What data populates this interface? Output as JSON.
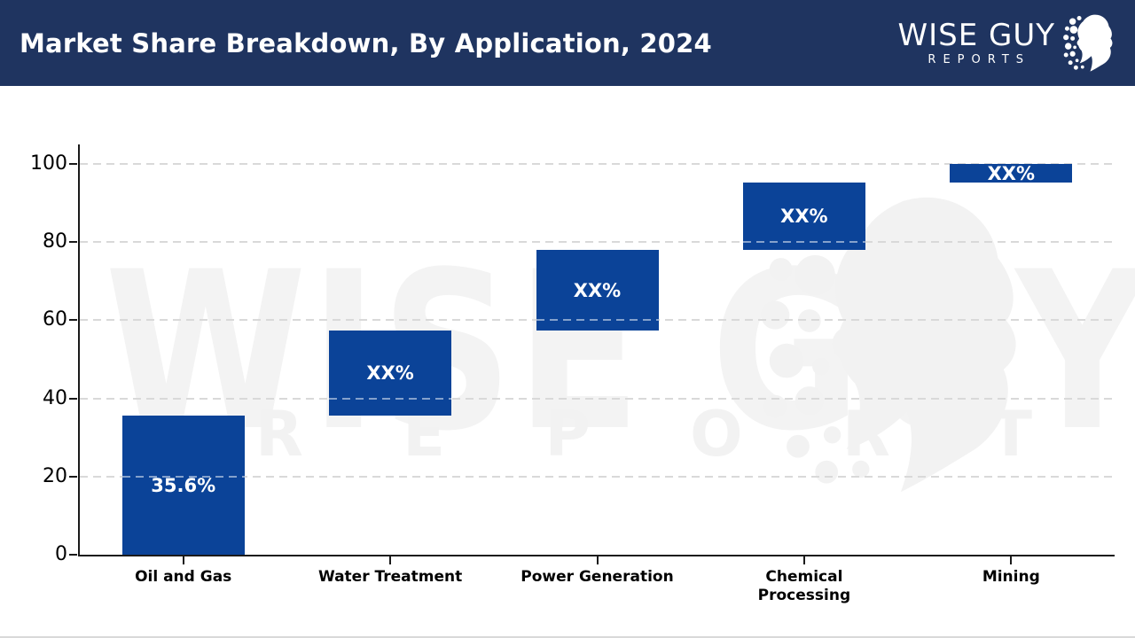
{
  "header": {
    "title": "Market Share Breakdown, By Application, 2024",
    "bg_color": "#1f3460",
    "logo": {
      "line1": "WISE GUY",
      "line2": "REPORTS"
    }
  },
  "watermark": {
    "line1": "WISE GUY",
    "line2": "R E P O R T S"
  },
  "chart_data": {
    "type": "bar",
    "subtype": "floating-segment-waterfall",
    "title": "Market Share Breakdown, By Application, 2024",
    "xlabel": "",
    "ylabel": "",
    "ylim": [
      0,
      105
    ],
    "yticks": [
      0,
      20,
      40,
      60,
      80,
      100
    ],
    "grid": "horizontal-dashed",
    "legend": "none",
    "bar_color": "#0b4398",
    "label_color": "#ffffff",
    "categories": [
      "Oil and Gas",
      "Water Treatment",
      "Power Generation",
      "Chemical Processing",
      "Mining"
    ],
    "bars": [
      {
        "category": "Oil and Gas",
        "category_lines": [
          "Oil and Gas"
        ],
        "start": 0,
        "end": 35.6,
        "label": "35.6%"
      },
      {
        "category": "Water Treatment",
        "category_lines": [
          "Water Treatment"
        ],
        "start": 35.6,
        "end": 57.3,
        "label": "XX%"
      },
      {
        "category": "Power Generation",
        "category_lines": [
          "Power Generation"
        ],
        "start": 57.3,
        "end": 78.0,
        "label": "XX%"
      },
      {
        "category": "Chemical Processing",
        "category_lines": [
          "Chemical",
          "Processing"
        ],
        "start": 78.0,
        "end": 95.2,
        "label": "XX%"
      },
      {
        "category": "Mining",
        "category_lines": [
          "Mining"
        ],
        "start": 95.2,
        "end": 100.0,
        "label": "XX%"
      }
    ]
  }
}
